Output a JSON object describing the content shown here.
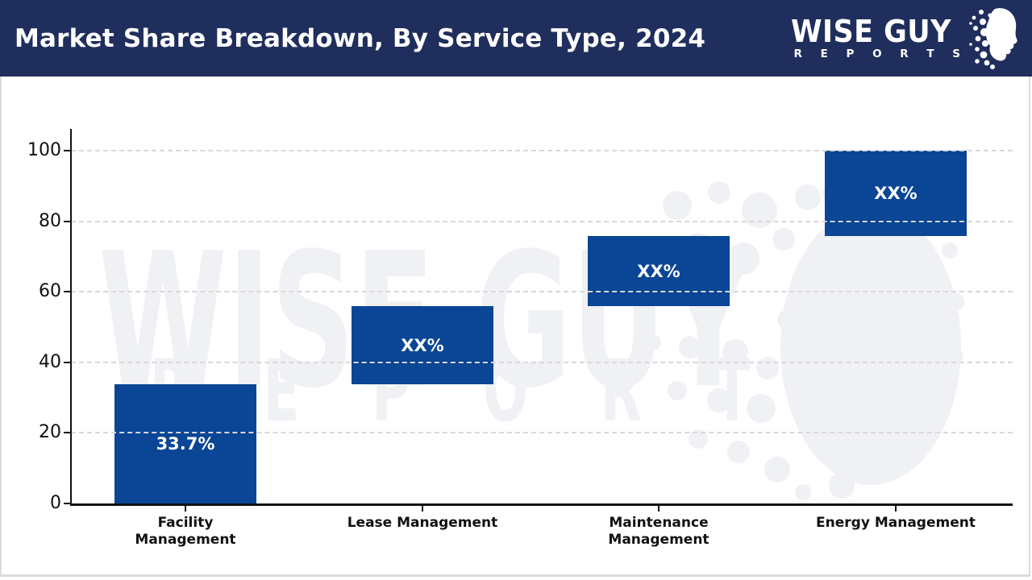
{
  "header": {
    "title": "Market Share Breakdown, By Service Type, 2024",
    "bg_color": "#1f2e5c",
    "logo": {
      "line1": "WISE GUY",
      "line2": "R E P O R T S"
    }
  },
  "watermark": {
    "line1": "WISE GUY",
    "line2": "R E P O R T S"
  },
  "chart_data": {
    "type": "bar",
    "variant": "waterfall",
    "title": "Market Share Breakdown, By Service Type, 2024",
    "categories": [
      "Facility Management",
      "Lease Management",
      "Maintenance Management",
      "Energy Management"
    ],
    "category_label_lines": [
      [
        "Facility",
        "Management"
      ],
      [
        "Lease Management"
      ],
      [
        "Maintenance",
        "Management"
      ],
      [
        "Energy Management"
      ]
    ],
    "segments": [
      {
        "category": "Facility Management",
        "start": 0,
        "end": 33.7,
        "label": "33.7%"
      },
      {
        "category": "Lease Management",
        "start": 33.7,
        "end": 55.9,
        "label": "XX%"
      },
      {
        "category": "Maintenance Management",
        "start": 55.9,
        "end": 75.8,
        "label": "XX%"
      },
      {
        "category": "Energy Management",
        "start": 75.8,
        "end": 100,
        "label": "XX%"
      }
    ],
    "ylim": [
      0,
      100
    ],
    "yticks": [
      0,
      20,
      40,
      60,
      80,
      100
    ],
    "grid": {
      "axis": "y",
      "style": "dashed",
      "color": "#d8d8d8"
    },
    "bar_color": "#0a4596",
    "bar_label_color": "#ffffff",
    "legend": false
  }
}
